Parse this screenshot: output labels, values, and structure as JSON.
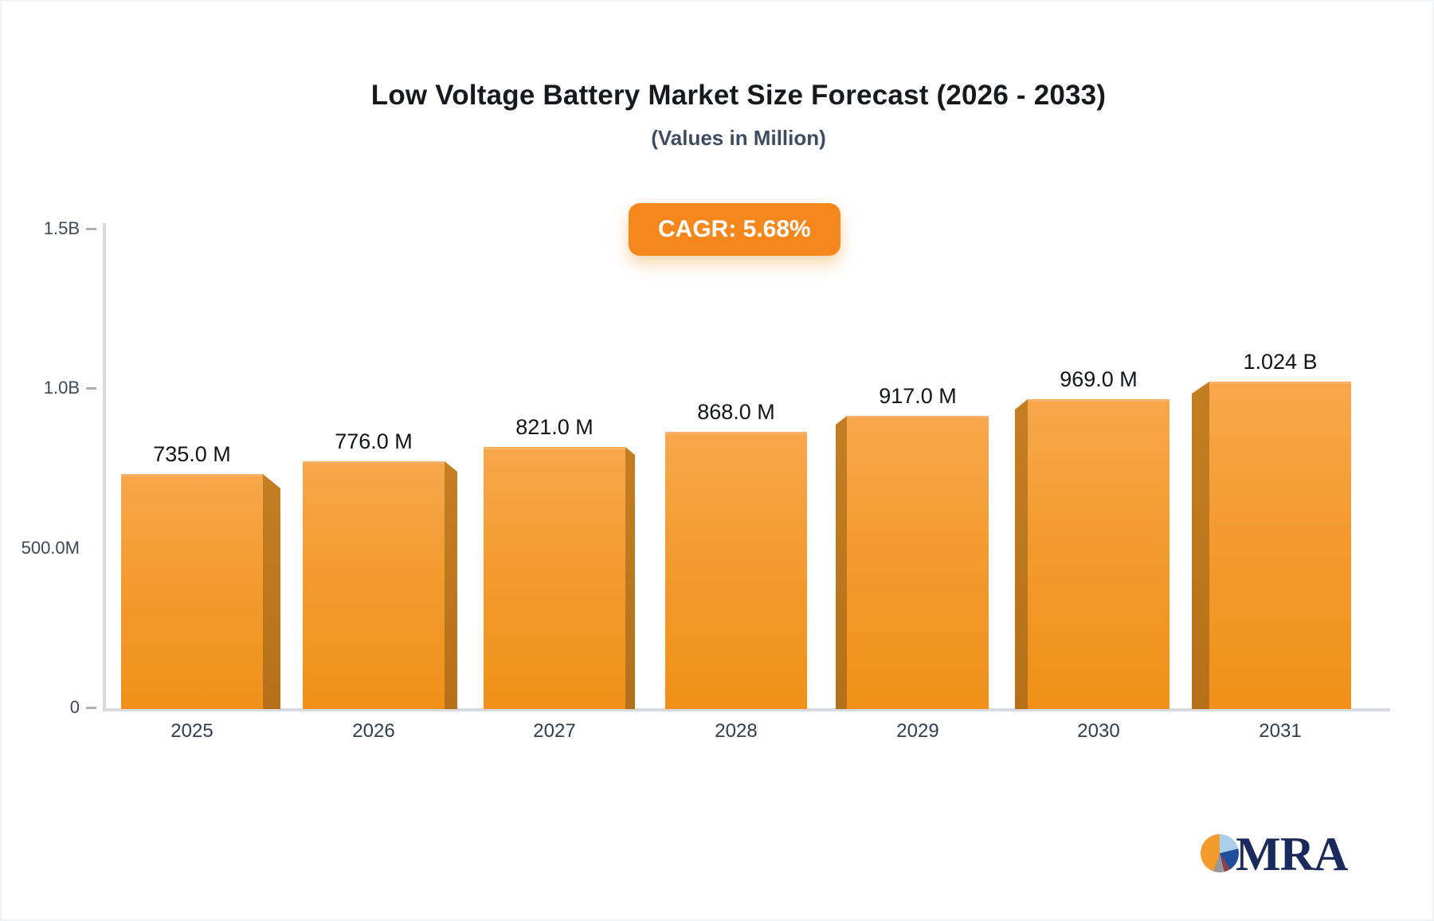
{
  "header": {
    "title": "Low Voltage Battery Market Size Forecast (2026 - 2033)",
    "subtitle": "(Values in Million)",
    "cagr_badge": "CAGR: 5.68%"
  },
  "logo": {
    "text": "MRA"
  },
  "chart_data": {
    "type": "bar",
    "title": "Low Voltage Battery Market Size Forecast (2026 - 2033)",
    "subtitle": "(Values in Million)",
    "cagr": "5.68%",
    "categories": [
      "2025",
      "2026",
      "2027",
      "2028",
      "2029",
      "2030",
      "2031"
    ],
    "values_millions": [
      735,
      776,
      821,
      868,
      917,
      969,
      1024
    ],
    "value_labels": [
      "735.0 M",
      "776.0 M",
      "821.0 M",
      "868.0 M",
      "917.0 M",
      "969.0 M",
      "1.024 B"
    ],
    "yticks": [
      {
        "label": "1.5B",
        "value_millions": 1500,
        "dash": true
      },
      {
        "label": "1.0B",
        "value_millions": 1000,
        "dash": true
      },
      {
        "label": "500.0M",
        "value_millions": 500,
        "dash": false
      },
      {
        "label": "0",
        "value_millions": 0,
        "dash": true
      }
    ],
    "ylim_millions": [
      0,
      1500
    ],
    "xlabel": "",
    "ylabel": "",
    "legend": "none",
    "grid": "off",
    "colors": {
      "bar_top": "#f7a74b",
      "bar_bottom": "#f09018",
      "bar_side": "#bc761f",
      "badge_accent": "#f6871c",
      "axis": "#d7dade",
      "logo_navy": "#1a2a5c",
      "logo_orange": "#f49b2e"
    }
  }
}
